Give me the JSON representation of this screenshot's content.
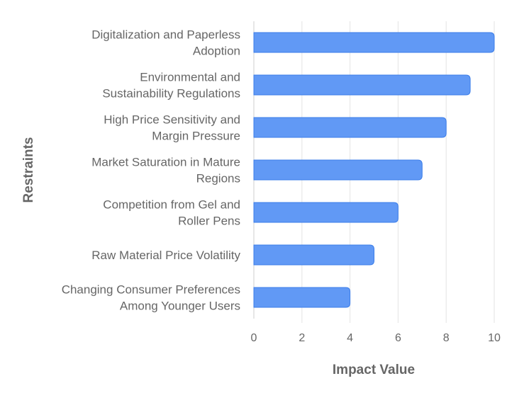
{
  "chart_data": {
    "type": "bar",
    "orientation": "horizontal",
    "title": "",
    "xlabel": "Impact Value",
    "ylabel": "Restraints",
    "xlim": [
      0,
      10
    ],
    "xticks": [
      "0",
      "2",
      "4",
      "6",
      "8",
      "10"
    ],
    "grid": true,
    "categories": [
      [
        "Digitalization and Paperless",
        "Adoption"
      ],
      [
        "Environmental and",
        "Sustainability Regulations"
      ],
      [
        "High Price Sensitivity and",
        "Margin Pressure"
      ],
      [
        "Market Saturation in Mature",
        "Regions"
      ],
      [
        "Competition from Gel and",
        "Roller Pens"
      ],
      [
        "Raw Material Price Volatility"
      ],
      [
        "Changing Consumer Preferences",
        "Among Younger Users"
      ]
    ],
    "values": [
      10,
      9,
      8,
      7,
      6,
      5,
      4
    ],
    "colors": {
      "bar_fill": "#6199f5",
      "bar_border": "#3b7de9",
      "grid": "#e3e3e3",
      "text": "#666666"
    }
  }
}
